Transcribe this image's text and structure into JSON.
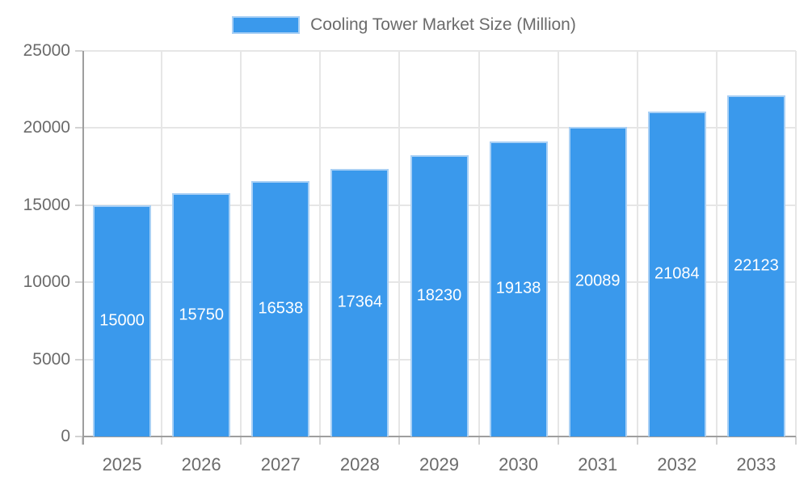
{
  "chart_data": {
    "type": "bar",
    "title": "Cooling Tower Market Size (Million)",
    "categories": [
      "2025",
      "2026",
      "2027",
      "2028",
      "2029",
      "2030",
      "2031",
      "2032",
      "2033"
    ],
    "values": [
      15000,
      15750,
      16538,
      17364,
      18230,
      19138,
      20089,
      21084,
      22123
    ],
    "xlabel": "",
    "ylabel": "",
    "ylim": [
      0,
      25000
    ],
    "yticks": [
      0,
      5000,
      10000,
      15000,
      20000,
      25000
    ],
    "grid": true,
    "legend_position": "top",
    "value_labels": "inside-center"
  },
  "legend": {
    "label": "Cooling Tower Market Size (Million)"
  },
  "colors": {
    "bar_fill": "#3a99ec",
    "bar_border": "#a9d0f5",
    "grid_line": "#e6e6e6",
    "tick_line": "#d2d2d2",
    "axis_line": "#9e9e9e",
    "axis_text": "#6b6b6b",
    "value_label_text": "#ffffff"
  }
}
